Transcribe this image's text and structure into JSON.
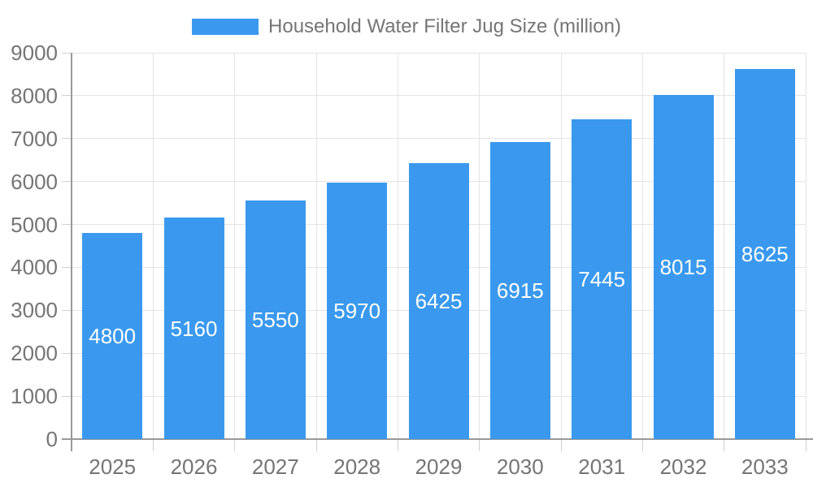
{
  "legend": {
    "label": "Household Water Filter Jug Size (million)"
  },
  "chart_data": {
    "type": "bar",
    "title": "",
    "legend_label": "Household Water Filter Jug Size (million)",
    "legend_position": "top-center",
    "categories": [
      "2025",
      "2026",
      "2027",
      "2028",
      "2029",
      "2030",
      "2031",
      "2032",
      "2033"
    ],
    "values": [
      4800,
      5160,
      5550,
      5970,
      6425,
      6915,
      7445,
      8015,
      8625
    ],
    "xlabel": "",
    "ylabel": "",
    "ylim": [
      0,
      9000
    ],
    "y_ticks": [
      0,
      1000,
      2000,
      3000,
      4000,
      5000,
      6000,
      7000,
      8000,
      9000
    ],
    "grid": true,
    "colors": {
      "bar": "#3a99ee",
      "value_label": "#ffffff",
      "axis_label": "#757575",
      "legend_label": "#757575",
      "gridline": "#e4e4e4",
      "tick": "#d0d0d0",
      "axis_line": "#999999",
      "background": "#ffffff"
    }
  }
}
